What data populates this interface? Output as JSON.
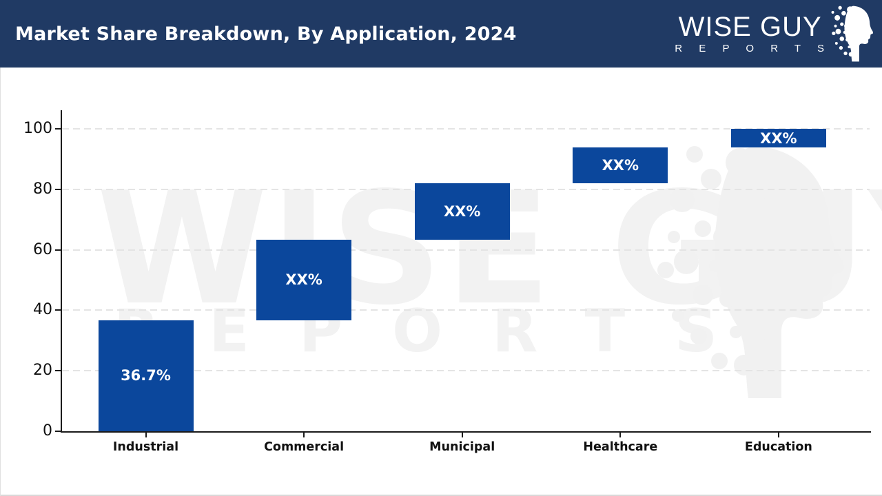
{
  "header": {
    "title": "Market Share Breakdown, By Application, 2024",
    "logo_line1": "WISE GUY",
    "logo_line2": "R E P O R T S"
  },
  "watermark": {
    "line1": "WISE GUY",
    "line2": "REPORTS"
  },
  "colors": {
    "header_bg": "#203a64",
    "bar": "#0b479c",
    "bar_label": "#ffffff",
    "grid": "#e4e4e4",
    "axis": "#1a1a1a",
    "watermark": "#f2f2f2"
  },
  "chart_data": {
    "type": "bar",
    "subtype": "waterfall",
    "title": "Market Share Breakdown, By Application, 2024",
    "categories": [
      "Industrial",
      "Commercial",
      "Municipal",
      "Healthcare",
      "Education"
    ],
    "segments": [
      {
        "category": "Industrial",
        "start": 0,
        "end": 36.7,
        "label": "36.7%"
      },
      {
        "category": "Commercial",
        "start": 36.7,
        "end": 63.3,
        "label": "XX%"
      },
      {
        "category": "Municipal",
        "start": 63.3,
        "end": 82.0,
        "label": "XX%"
      },
      {
        "category": "Healthcare",
        "start": 82.0,
        "end": 93.8,
        "label": "XX%"
      },
      {
        "category": "Education",
        "start": 93.8,
        "end": 100.0,
        "label": "XX%"
      }
    ],
    "yticks": [
      0,
      20,
      40,
      60,
      80,
      100
    ],
    "ylim": [
      0,
      106
    ],
    "xlabel": "",
    "ylabel": "",
    "grid": "horizontal-dashed",
    "legend": "none"
  }
}
